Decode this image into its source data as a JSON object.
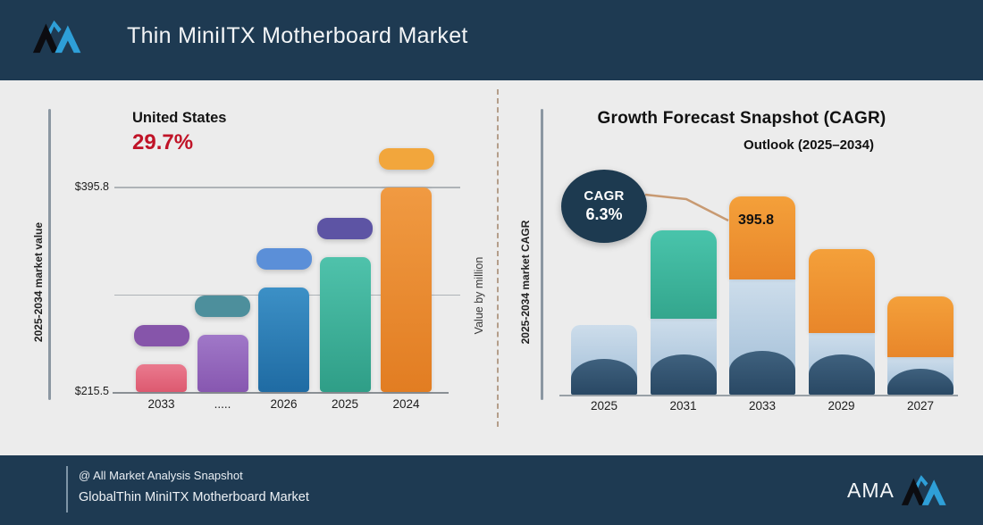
{
  "header": {
    "title": "Thin MiniITX Motherboard Market",
    "logo_name": "AMA"
  },
  "colors": {
    "band_bg": "#1e3a52",
    "panel_bg": "#ececec",
    "accent_red": "#c01327",
    "axis": "#8b97a2",
    "gridline": "#9aa0a5",
    "connector_tan": "#c89a72",
    "bubble_navy": "#1d3a50",
    "divider_dash": "#a78b72"
  },
  "chart_data": [
    {
      "id": "us-market-value",
      "type": "bar",
      "title": "United States",
      "highlight_value": "29.7%",
      "ylabel_left": "2025-2034 market value",
      "ylabel_right": "Value by million",
      "ylim": [
        215.5,
        395.8
      ],
      "ytick_labels": [
        {
          "label": "$395.8",
          "value": 395.8
        },
        {
          "label": "$215.5",
          "value": 215.5
        }
      ],
      "gridline_values": [
        395.8,
        300.6
      ],
      "categories": [
        "2033",
        ".....",
        "2026",
        "2025",
        "2024"
      ],
      "values": [
        240,
        266,
        308,
        334,
        395.8
      ],
      "bar_gradients": [
        [
          "#ea7a8e",
          "#dd5970"
        ],
        [
          "#a078c8",
          "#8757b0"
        ],
        [
          "#3c90c6",
          "#1f6ba3"
        ],
        [
          "#4fc2ab",
          "#2f9e87"
        ],
        [
          "#f09a42",
          "#e27d22"
        ]
      ],
      "cap_colors": [
        "#8655aa",
        "#4d8f9c",
        "#5b8fd8",
        "#5d54a4",
        "#f2a63c"
      ]
    },
    {
      "id": "growth-forecast-cagr",
      "type": "stacked-bar",
      "title": "Growth Forecast Snapshot (CAGR)",
      "subtitle": "Outlook (2025–2034)",
      "ylabel_left": "2025-2034 market CAGR",
      "annotation": {
        "label": "CAGR",
        "value": "6.3%"
      },
      "point_label": "395.8",
      "point_label_category": "2033",
      "categories": [
        "2025",
        "2031",
        "2033",
        "2029",
        "2027"
      ],
      "bars": [
        {
          "category": "2025",
          "blue_h": 78,
          "base_h": 40,
          "top_h": 0,
          "top_color": null
        },
        {
          "category": "2031",
          "blue_h": 85,
          "base_h": 45,
          "top_h": 99,
          "top_color": "teal"
        },
        {
          "category": "2033",
          "blue_h": 129,
          "base_h": 49,
          "top_h": 93,
          "top_color": "orange"
        },
        {
          "category": "2029",
          "blue_h": 69,
          "base_h": 45,
          "top_h": 94,
          "top_color": "orange"
        },
        {
          "category": "2027",
          "blue_h": 42,
          "base_h": 29,
          "top_h": 68,
          "top_color": "orange"
        }
      ],
      "segment_colors": {
        "blue": [
          "#cdddeb",
          "#9fbcd6"
        ],
        "base": [
          "#3f617e",
          "#294864"
        ],
        "teal": [
          "#49c4ab",
          "#33a68d"
        ],
        "orange": [
          "#f4a03a",
          "#e8862a"
        ]
      }
    }
  ],
  "footer": {
    "line1": "@ All Market Analysis Snapshot",
    "line2": "GlobalThin MiniITX Motherboard Market",
    "brand": "AMA"
  }
}
